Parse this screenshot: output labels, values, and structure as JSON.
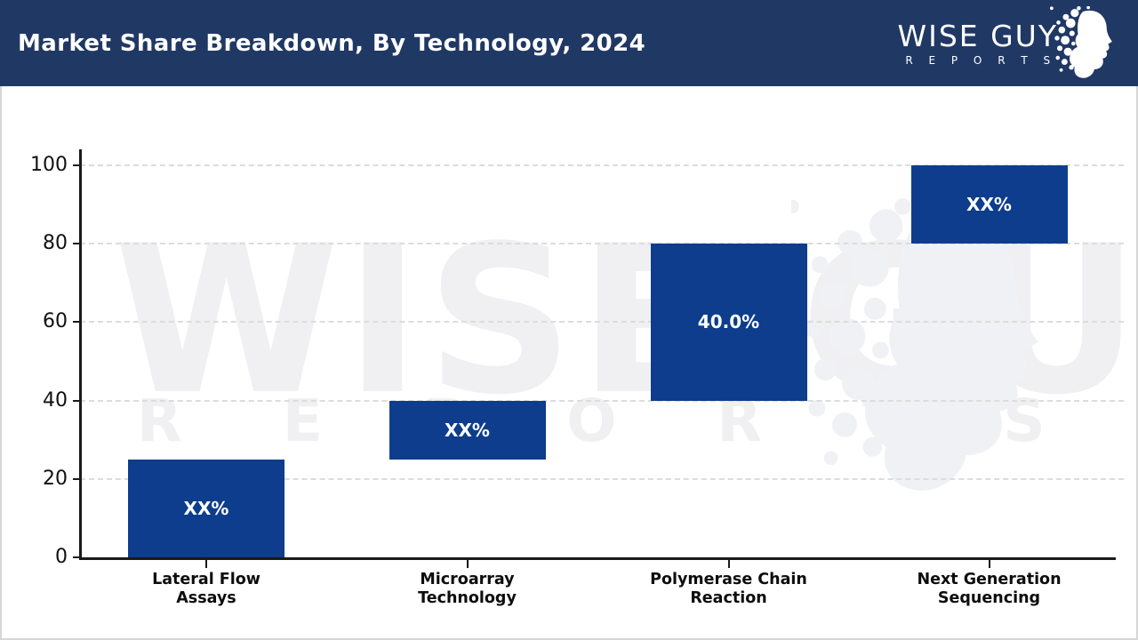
{
  "header": {
    "title": "Market Share Breakdown, By Technology, 2024"
  },
  "logo": {
    "name": "WISE GUY",
    "reports": "R E P O R T S",
    "head_icon": "dotted-head-profile-icon"
  },
  "watermark": {
    "line1": "WISE GUY",
    "line2": "R E P O R T S",
    "head_icon": "dotted-head-profile-icon"
  },
  "colors": {
    "header_bg": "#203864",
    "bar": "#0d3d8c",
    "grid": "#dcdcdc",
    "watermark": "#f0f0f2",
    "axis": "#1a1a1a",
    "value_label": "#ffffff"
  },
  "chart_data": {
    "type": "bar",
    "subtype": "waterfall",
    "title": "Market Share Breakdown, By Technology, 2024",
    "xlabel": "",
    "ylabel": "",
    "ylim": [
      0,
      100
    ],
    "yticks": [
      0,
      20,
      40,
      60,
      80,
      100
    ],
    "grid": "horizontal-dashed",
    "legend": "none",
    "categories": [
      "Lateral Flow Assays",
      "Microarray Technology",
      "Polymerase Chain Reaction",
      "Next Generation Sequencing"
    ],
    "segments": [
      {
        "category": "Lateral Flow Assays",
        "label_lines": [
          "Lateral Flow",
          "Assays"
        ],
        "start": 0,
        "end": 25,
        "value": 25,
        "value_label": "XX%"
      },
      {
        "category": "Microarray Technology",
        "label_lines": [
          "Microarray",
          "Technology"
        ],
        "start": 25,
        "end": 40,
        "value": 15,
        "value_label": "XX%"
      },
      {
        "category": "Polymerase Chain Reaction",
        "label_lines": [
          "Polymerase Chain",
          "Reaction"
        ],
        "start": 40,
        "end": 80,
        "value": 40,
        "value_label": "40.0%"
      },
      {
        "category": "Next Generation Sequencing",
        "label_lines": [
          "Next Generation",
          "Sequencing"
        ],
        "start": 80,
        "end": 100,
        "value": 20,
        "value_label": "XX%"
      }
    ]
  }
}
